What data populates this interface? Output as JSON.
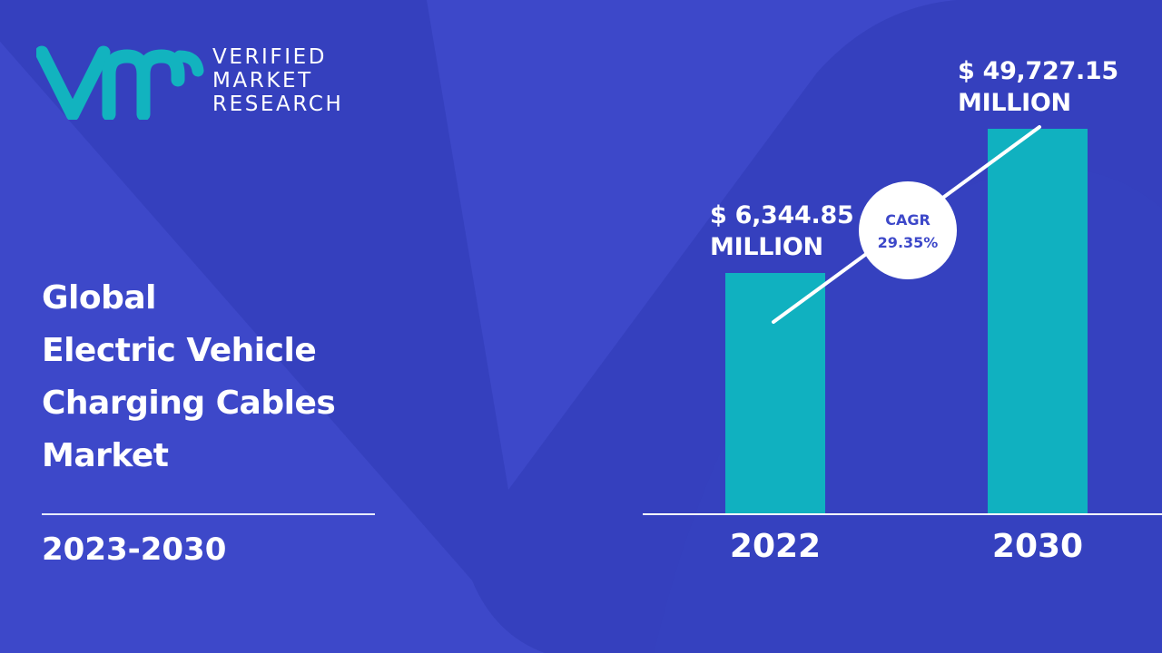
{
  "brand": {
    "line1": "VERIFIED",
    "line2": "MARKET",
    "line3": "RESEARCH"
  },
  "title": {
    "lines": [
      "Global",
      "Electric Vehicle",
      "Charging Cables",
      "Market"
    ]
  },
  "forecast_period": "2023-2030",
  "colors": {
    "background": "#3d48c9",
    "bar": "#10b1c0",
    "logo": "#12b3bf"
  },
  "chart_data": {
    "type": "bar",
    "categories": [
      "2022",
      "2030"
    ],
    "values": [
      6344.85,
      49727.15
    ],
    "value_labels": [
      [
        "$ 6,344.85",
        "MILLION"
      ],
      [
        "$ 49,727.15",
        "MILLION"
      ]
    ],
    "cagr": {
      "label": "CAGR",
      "value": "29.35%"
    },
    "unit": "MILLION",
    "grid": false
  }
}
